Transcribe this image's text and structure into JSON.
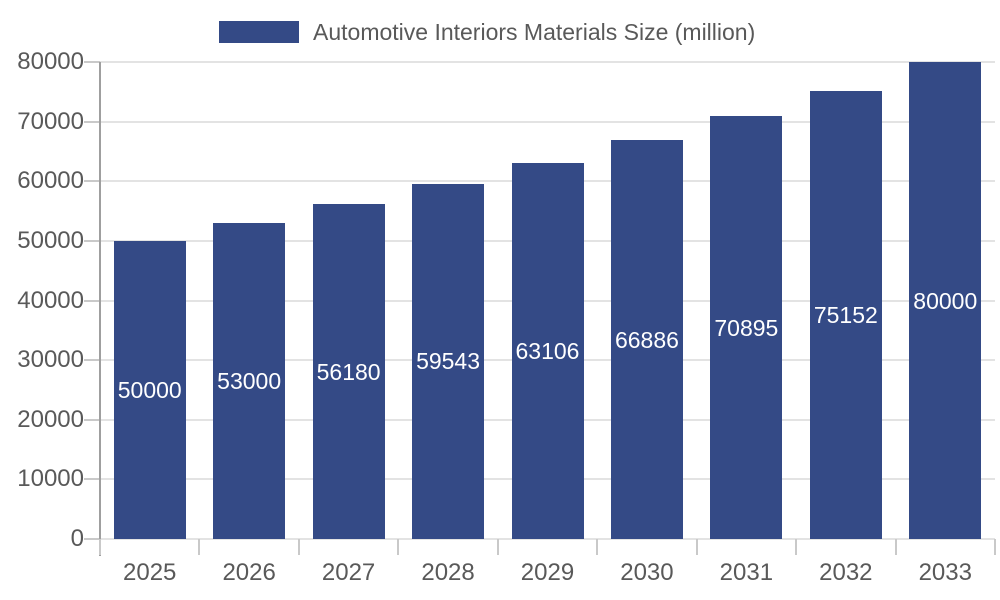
{
  "chart_data": {
    "type": "bar",
    "title": "Automotive Interiors Materials Size (million)",
    "categories": [
      "2025",
      "2026",
      "2027",
      "2028",
      "2029",
      "2030",
      "2031",
      "2032",
      "2033"
    ],
    "values": [
      50000,
      53000,
      56180,
      59543,
      63106,
      66886,
      70895,
      75152,
      80000
    ],
    "xlabel": "",
    "ylabel": "",
    "ylim": [
      0,
      80000
    ],
    "yticks": [
      0,
      10000,
      20000,
      30000,
      40000,
      50000,
      60000,
      70000,
      80000
    ],
    "grid": true,
    "legend_position": "top-center",
    "bar_labels_shown": true,
    "colors": {
      "bar": "#344a86",
      "bar_label_text": "#ffffff",
      "axis_text": "#595959",
      "gridline": "#e3e3e3",
      "axis_line": "#9f9f9f",
      "tick": "#c9c9c9",
      "background": "#ffffff"
    }
  },
  "legend": {
    "label": "Automotive Interiors Materials Size (million)"
  }
}
